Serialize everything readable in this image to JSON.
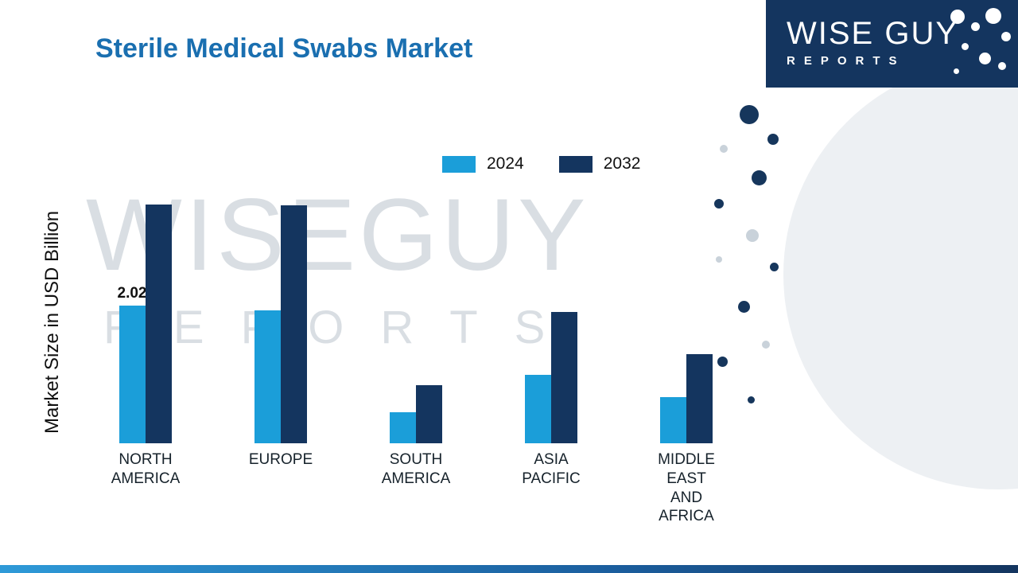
{
  "page": {
    "title": "Sterile Medical Swabs Market"
  },
  "logo": {
    "line1": "WISE GUY",
    "line2": "REPORTS"
  },
  "watermark": {
    "line1": "WISEGUY",
    "line2": "REPORTS"
  },
  "chart_data": {
    "type": "bar",
    "title": "Sterile Medical Swabs Market",
    "xlabel": "",
    "ylabel": "Market Size in USD Billion",
    "categories": [
      "NORTH AMERICA",
      "EUROPE",
      "SOUTH AMERICA",
      "ASIA PACIFIC",
      "MIDDLE EAST AND AFRICA"
    ],
    "series": [
      {
        "name": "2024",
        "color": "#1b9ed9",
        "values": [
          2.02,
          1.95,
          0.45,
          1.0,
          0.67
        ]
      },
      {
        "name": "2032",
        "color": "#14355f",
        "values": [
          3.5,
          3.48,
          0.85,
          1.92,
          1.3
        ]
      }
    ],
    "ylim": [
      0,
      3.6
    ],
    "grid": false,
    "legend_position": "top",
    "annotations": [
      {
        "text": "2.02",
        "category_index": 0,
        "series_index": 0
      }
    ]
  },
  "colors": {
    "accent": "#1a6fb0",
    "bar_2024": "#1b9ed9",
    "bar_2032": "#14355f",
    "logo_bg": "#14355f",
    "footer_from": "#2e9ad8",
    "footer_to": "#14355f"
  }
}
